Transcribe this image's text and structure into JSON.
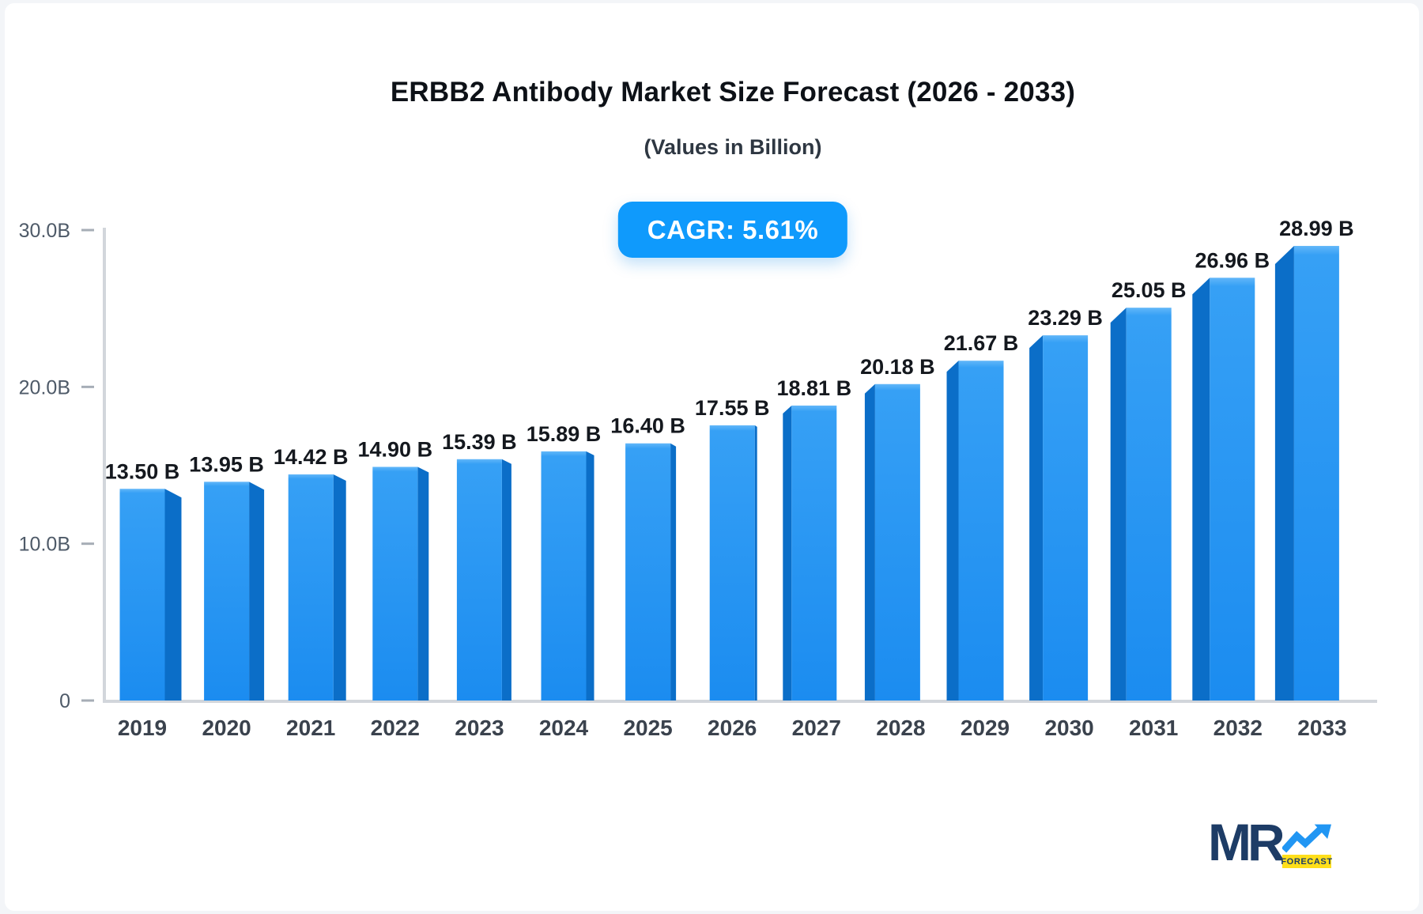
{
  "title": "ERBB2 Antibody Market Size Forecast (2026 - 2033)",
  "subtitle": "(Values in Billion)",
  "badge": {
    "label": "CAGR: 5.61%",
    "bg": "#0f9afc"
  },
  "logo": {
    "mr": "MR",
    "forecast": "FORECAST",
    "navy": "#1d3c66",
    "blue": "#2196f3",
    "yellow": "#ffdf1b"
  },
  "chart_data": {
    "type": "bar",
    "title": "ERBB2 Antibody Market Size Forecast (2026 - 2033)",
    "subtitle": "(Values in Billion)",
    "cagr_annotation": "CAGR: 5.61%",
    "categories": [
      "2019",
      "2020",
      "2021",
      "2022",
      "2023",
      "2024",
      "2025",
      "2026",
      "2027",
      "2028",
      "2029",
      "2030",
      "2031",
      "2032",
      "2033"
    ],
    "values": [
      13.5,
      13.95,
      14.42,
      14.9,
      15.39,
      15.89,
      16.4,
      17.55,
      18.81,
      20.18,
      21.67,
      23.29,
      25.05,
      26.96,
      28.99
    ],
    "value_labels": [
      "13.50 B",
      "13.95 B",
      "14.42 B",
      "14.90 B",
      "15.39 B",
      "15.89 B",
      "16.40 B",
      "17.55 B",
      "18.81 B",
      "20.18 B",
      "21.67 B",
      "23.29 B",
      "25.05 B",
      "26.96 B",
      "28.99 B"
    ],
    "xlabel": "",
    "ylabel": "",
    "ylim": [
      0,
      30
    ],
    "yticks": [
      {
        "value": 0,
        "label": "0"
      },
      {
        "value": 10,
        "label": "10.0B"
      },
      {
        "value": 20,
        "label": "20.0B"
      },
      {
        "value": 30,
        "label": "30.0B"
      }
    ],
    "grid": false,
    "legend": "none",
    "colors": {
      "bar_front": "#1b8cf0",
      "bar_front_light": "#62b7f9",
      "bar_front_mid": "#36a0f5",
      "bar_side": "#0b6ec8",
      "axis_line": "#d2d6db",
      "tick_mark": "#a6adb6",
      "tick_label": "#4e5a68",
      "year_label": "#3a424d",
      "value_label": "#14181e"
    }
  }
}
